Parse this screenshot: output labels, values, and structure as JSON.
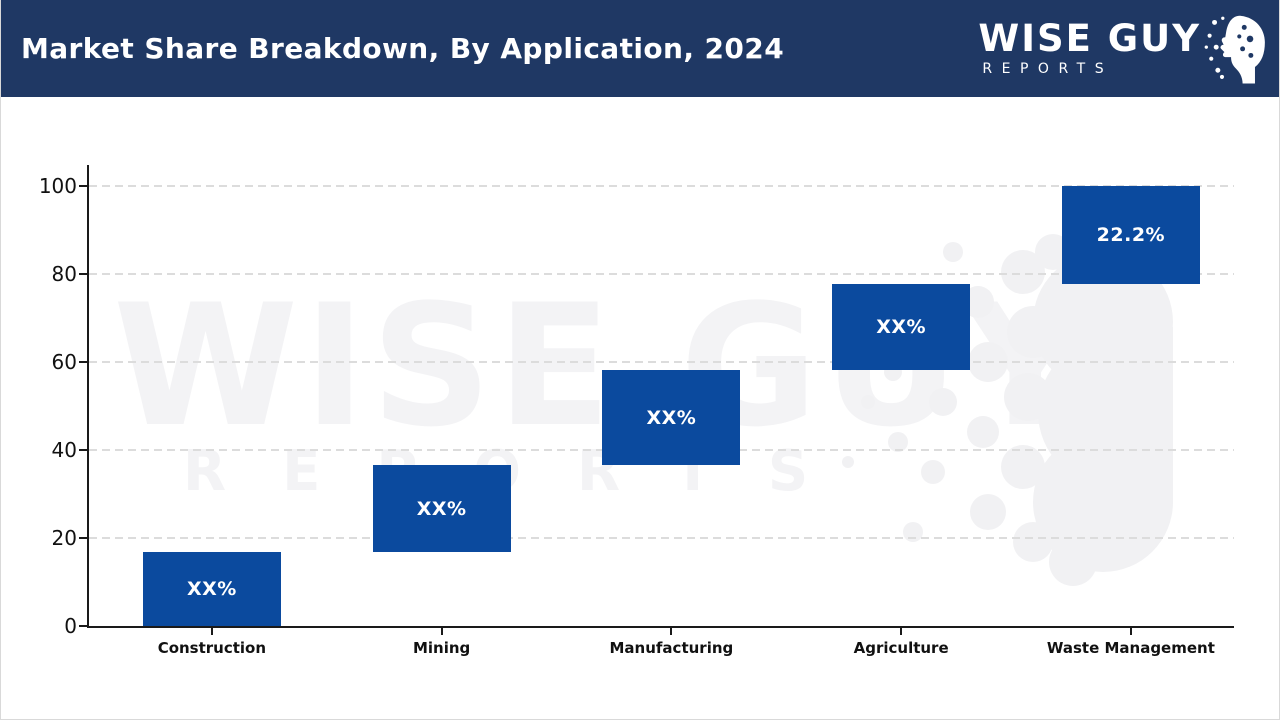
{
  "header": {
    "title": "Market Share Breakdown, By Application, 2024"
  },
  "logo": {
    "line1": "WISE GUY",
    "line2": "REPORTS"
  },
  "watermark": {
    "line1": "WISE GUY",
    "line2": "REPORTS"
  },
  "chart_data": {
    "type": "bar",
    "subtype": "waterfall",
    "title": "Market Share Breakdown, By Application, 2024",
    "categories": [
      "Construction",
      "Mining",
      "Manufacturing",
      "Agriculture",
      "Waste Management"
    ],
    "segments": [
      {
        "category": "Construction",
        "start": 0,
        "end": 16.8,
        "label": "XX%"
      },
      {
        "category": "Mining",
        "start": 16.8,
        "end": 36.5,
        "label": "XX%"
      },
      {
        "category": "Manufacturing",
        "start": 36.5,
        "end": 58.2,
        "label": "XX%"
      },
      {
        "category": "Agriculture",
        "start": 58.2,
        "end": 77.8,
        "label": "XX%"
      },
      {
        "category": "Waste Management",
        "start": 77.8,
        "end": 100,
        "label": "22.2%"
      }
    ],
    "xlabel": "",
    "ylabel": "",
    "ylim": [
      0,
      100
    ],
    "yticks": [
      0,
      20,
      40,
      60,
      80,
      100
    ],
    "grid": "horizontal-dashed",
    "legend": "none",
    "colors": {
      "bar": "#0b4a9e",
      "bar_label": "#ffffff",
      "axis": "#1a1a1a",
      "tick_label": "#111111",
      "gridline": "#dcdcdc",
      "header_bg": "#1f3864",
      "header_text": "#ffffff",
      "watermark": "#f3f3f5"
    }
  }
}
